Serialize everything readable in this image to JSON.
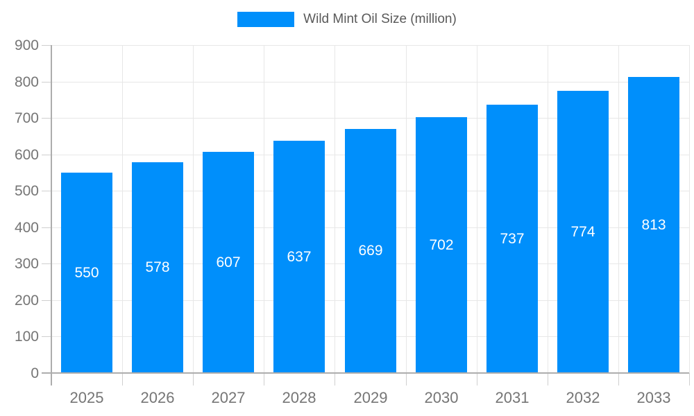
{
  "legend": {
    "label": "Wild Mint Oil Size (million)"
  },
  "chart_data": {
    "type": "bar",
    "title": "",
    "xlabel": "",
    "ylabel": "",
    "categories": [
      "2025",
      "2026",
      "2027",
      "2028",
      "2029",
      "2030",
      "2031",
      "2032",
      "2033"
    ],
    "series": [
      {
        "name": "Wild Mint Oil Size (million)",
        "values": [
          550,
          578,
          607,
          637,
          669,
          702,
          737,
          774,
          813
        ]
      }
    ],
    "ylim": [
      0,
      900
    ],
    "ytick_step": 100,
    "yticks": [
      0,
      100,
      200,
      300,
      400,
      500,
      600,
      700,
      800,
      900
    ],
    "grid": true,
    "legend_position": "top",
    "bar_value_labels": true
  },
  "colors": {
    "bar": "#008FFB",
    "bar_label": "#FFFFFF",
    "axis_label": "#757575",
    "legend_text": "#595959",
    "gridline": "#E7E7E7",
    "axis_line": "#ADADAD",
    "tick": "#CFCFCF",
    "background": "#FFFFFF"
  }
}
